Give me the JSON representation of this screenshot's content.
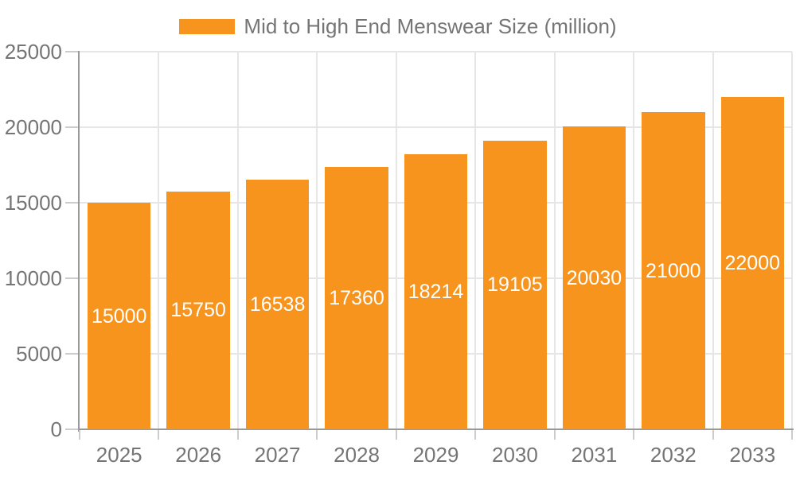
{
  "chart_data": {
    "type": "bar",
    "title": "Mid to High End Menswear Size (million)",
    "categories": [
      "2025",
      "2026",
      "2027",
      "2028",
      "2029",
      "2030",
      "2031",
      "2032",
      "2033"
    ],
    "series": [
      {
        "name": "Mid to High End Menswear Size (million)",
        "values": [
          15000,
          15750,
          16538,
          17360,
          18214,
          19105,
          20030,
          21000,
          22000
        ]
      }
    ],
    "bar_labels": [
      "15000",
      "15750",
      "16538",
      "17360",
      "18214",
      "19105",
      "20030",
      "21000",
      "22000"
    ],
    "ytick_labels": [
      "0",
      "5000",
      "10000",
      "15000",
      "20000",
      "25000"
    ],
    "yticks": [
      0,
      5000,
      10000,
      15000,
      20000,
      25000
    ],
    "ylim": [
      0,
      25000
    ],
    "xlabel": "",
    "ylabel": "",
    "grid": true,
    "legend_position": "top-center",
    "colors": {
      "bar": "#F7941E",
      "bar_label": "#FFFFFF",
      "axis": "#999999",
      "tick": "#CCCCCC",
      "grid": "#E6E6E6",
      "text": "#757575",
      "background": "#FFFFFF"
    }
  }
}
